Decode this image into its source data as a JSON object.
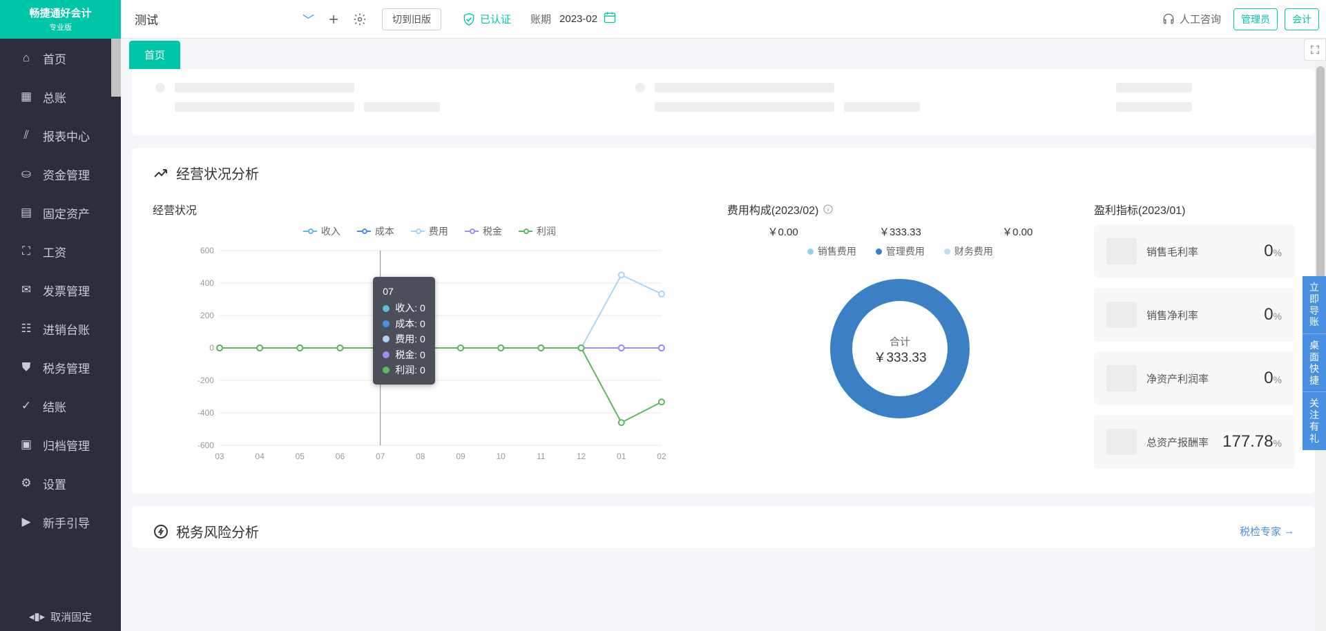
{
  "brand": {
    "name": "畅捷通好会计",
    "edition": "专业版"
  },
  "header": {
    "company": "测试",
    "switch_old": "切到旧版",
    "verified": "已认证",
    "period_label": "账期",
    "period_value": "2023-02",
    "consult": "人工咨询",
    "role_admin": "管理员",
    "role_acct": "会计"
  },
  "sidebar": {
    "items": [
      {
        "label": "首页"
      },
      {
        "label": "总账"
      },
      {
        "label": "报表中心"
      },
      {
        "label": "资金管理"
      },
      {
        "label": "固定资产"
      },
      {
        "label": "工资"
      },
      {
        "label": "发票管理"
      },
      {
        "label": "进销台账"
      },
      {
        "label": "税务管理"
      },
      {
        "label": "结账"
      },
      {
        "label": "归档管理"
      },
      {
        "label": "设置"
      },
      {
        "label": "新手引导"
      }
    ],
    "unpin": "取消固定"
  },
  "tabs": {
    "home": "首页"
  },
  "float": {
    "import": "立即导账",
    "desktop": "桌面快捷",
    "follow": "关注有礼"
  },
  "analysis": {
    "title": "经营状况分析",
    "line": {
      "title": "经营状况",
      "type": "line",
      "xlabels": [
        "03",
        "04",
        "05",
        "06",
        "07",
        "08",
        "09",
        "10",
        "11",
        "12",
        "01",
        "02"
      ],
      "yticks": [
        -600,
        -400,
        -200,
        0,
        200,
        400,
        600
      ],
      "ylim": [
        -600,
        600
      ],
      "grid_color": "#e8e8e8",
      "axis_color": "#aaaaaa",
      "series": [
        {
          "name": "收入",
          "color": "#5bc0de",
          "values": [
            0,
            0,
            0,
            0,
            0,
            0,
            0,
            0,
            0,
            0,
            0,
            0
          ]
        },
        {
          "name": "成本",
          "color": "#4a90e2",
          "values": [
            0,
            0,
            0,
            0,
            0,
            0,
            0,
            0,
            0,
            0,
            0,
            0
          ]
        },
        {
          "name": "费用",
          "color": "#a8d5f5",
          "values": [
            0,
            0,
            0,
            0,
            0,
            0,
            0,
            0,
            0,
            0,
            450,
            333
          ]
        },
        {
          "name": "税金",
          "color": "#9b8cff",
          "values": [
            0,
            0,
            0,
            0,
            0,
            0,
            0,
            0,
            0,
            0,
            0,
            0
          ]
        },
        {
          "name": "利润",
          "color": "#5cb85c",
          "values": [
            0,
            0,
            0,
            0,
            0,
            0,
            0,
            0,
            0,
            0,
            -460,
            -333
          ]
        }
      ],
      "tooltip": {
        "x_index": 4,
        "x_label": "07",
        "rows": [
          {
            "name": "收入",
            "value": 0,
            "color": "#5bc0de"
          },
          {
            "name": "成本",
            "value": 0,
            "color": "#4a90e2"
          },
          {
            "name": "费用",
            "value": 0,
            "color": "#a8d5f5"
          },
          {
            "name": "税金",
            "value": 0,
            "color": "#9b8cff"
          },
          {
            "name": "利润",
            "value": 0,
            "color": "#5cb85c"
          }
        ]
      }
    },
    "donut": {
      "title": "费用构成(2023/02)",
      "type": "donut",
      "total_label": "合计",
      "total_value": "￥333.33",
      "ring_color": "#3b7fc4",
      "ring_width": 32,
      "items": [
        {
          "name": "销售费用",
          "value": "￥0.00",
          "color": "#8ed1f0"
        },
        {
          "name": "管理费用",
          "value": "￥333.33",
          "color": "#3b7fc4"
        },
        {
          "name": "财务费用",
          "value": "￥0.00",
          "color": "#c1dff5"
        }
      ]
    },
    "metrics": {
      "title": "盈利指标(2023/01)",
      "items": [
        {
          "label": "销售毛利率",
          "value": "0",
          "unit": "%"
        },
        {
          "label": "销售净利率",
          "value": "0",
          "unit": "%"
        },
        {
          "label": "净资产利润率",
          "value": "0",
          "unit": "%"
        },
        {
          "label": "总资产报酬率",
          "value": "177.78",
          "unit": "%"
        }
      ]
    }
  },
  "tax": {
    "title": "税务风险分析",
    "link": "税检专家"
  }
}
